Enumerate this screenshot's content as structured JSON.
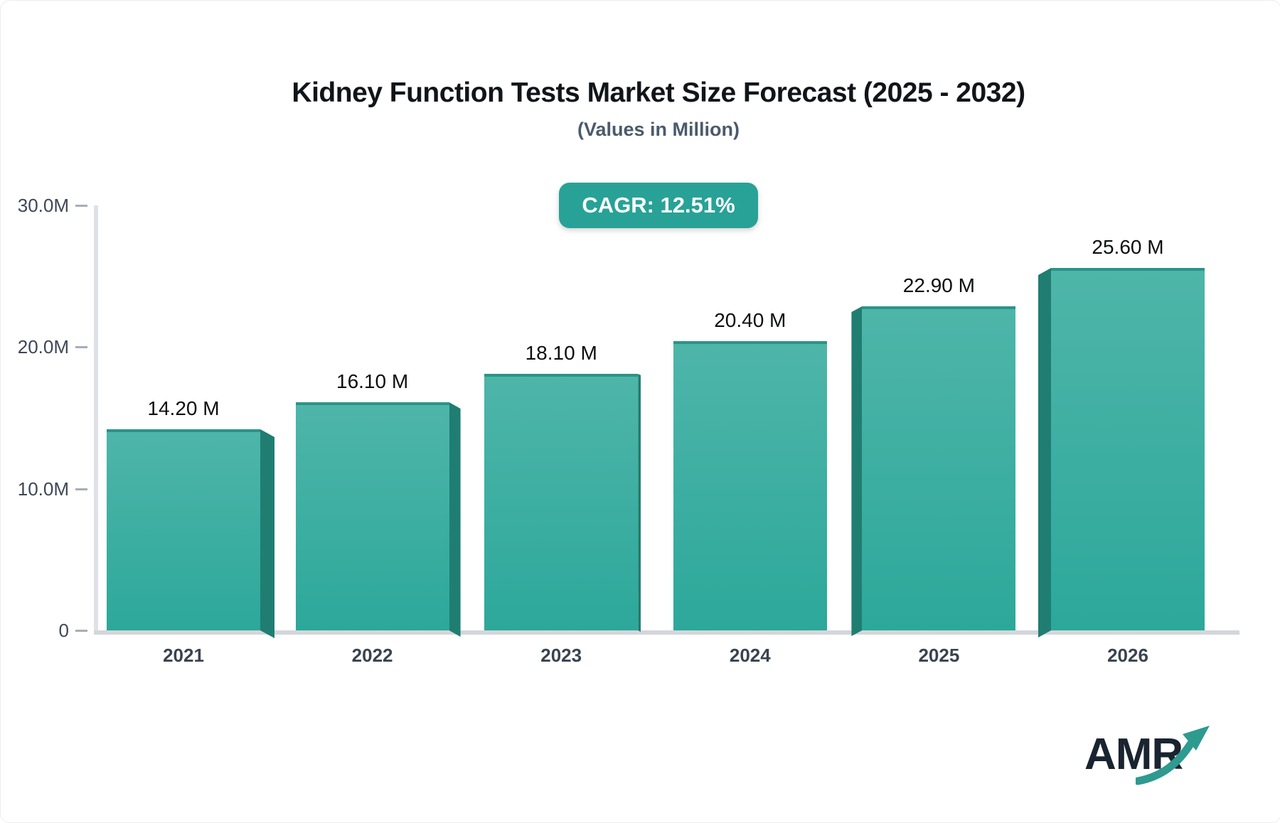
{
  "title": "Kidney Function Tests Market Size Forecast (2025 - 2032)",
  "subtitle": "(Values in Million)",
  "badge": {
    "label": "CAGR: 12.51%",
    "bg_color": "#28a296",
    "text_color": "#ffffff"
  },
  "chart_data": {
    "type": "bar",
    "categories": [
      "2021",
      "2022",
      "2023",
      "2024",
      "2025",
      "2026"
    ],
    "values": [
      14.2,
      16.1,
      18.1,
      20.4,
      22.9,
      25.6
    ],
    "value_labels": [
      "14.20 M",
      "16.10 M",
      "18.10 M",
      "20.40 M",
      "22.90 M",
      "25.60 M"
    ],
    "title": "Kidney Function Tests Market Size Forecast (2025 - 2032)",
    "subtitle": "(Values in Million)",
    "xlabel": "",
    "ylabel": "",
    "ylim": [
      0,
      30
    ],
    "grid": false,
    "legend": false,
    "y_ticks": [
      {
        "value": 0,
        "label": "0"
      },
      {
        "value": 10,
        "label": "10.0M"
      },
      {
        "value": 20,
        "label": "20.0M"
      },
      {
        "value": 30,
        "label": "30.0M"
      }
    ],
    "colors": {
      "bar_face_top": "#4eb5a9",
      "bar_face_bottom": "#2ca89a",
      "bar_top_edge": "#2a9488",
      "bar_side": "#1f7e71",
      "axis_line": "#dfe1e6",
      "baseline": "#d3d6db"
    }
  },
  "logo": {
    "text": "AMR",
    "arrow_color": "#2e9a90"
  }
}
